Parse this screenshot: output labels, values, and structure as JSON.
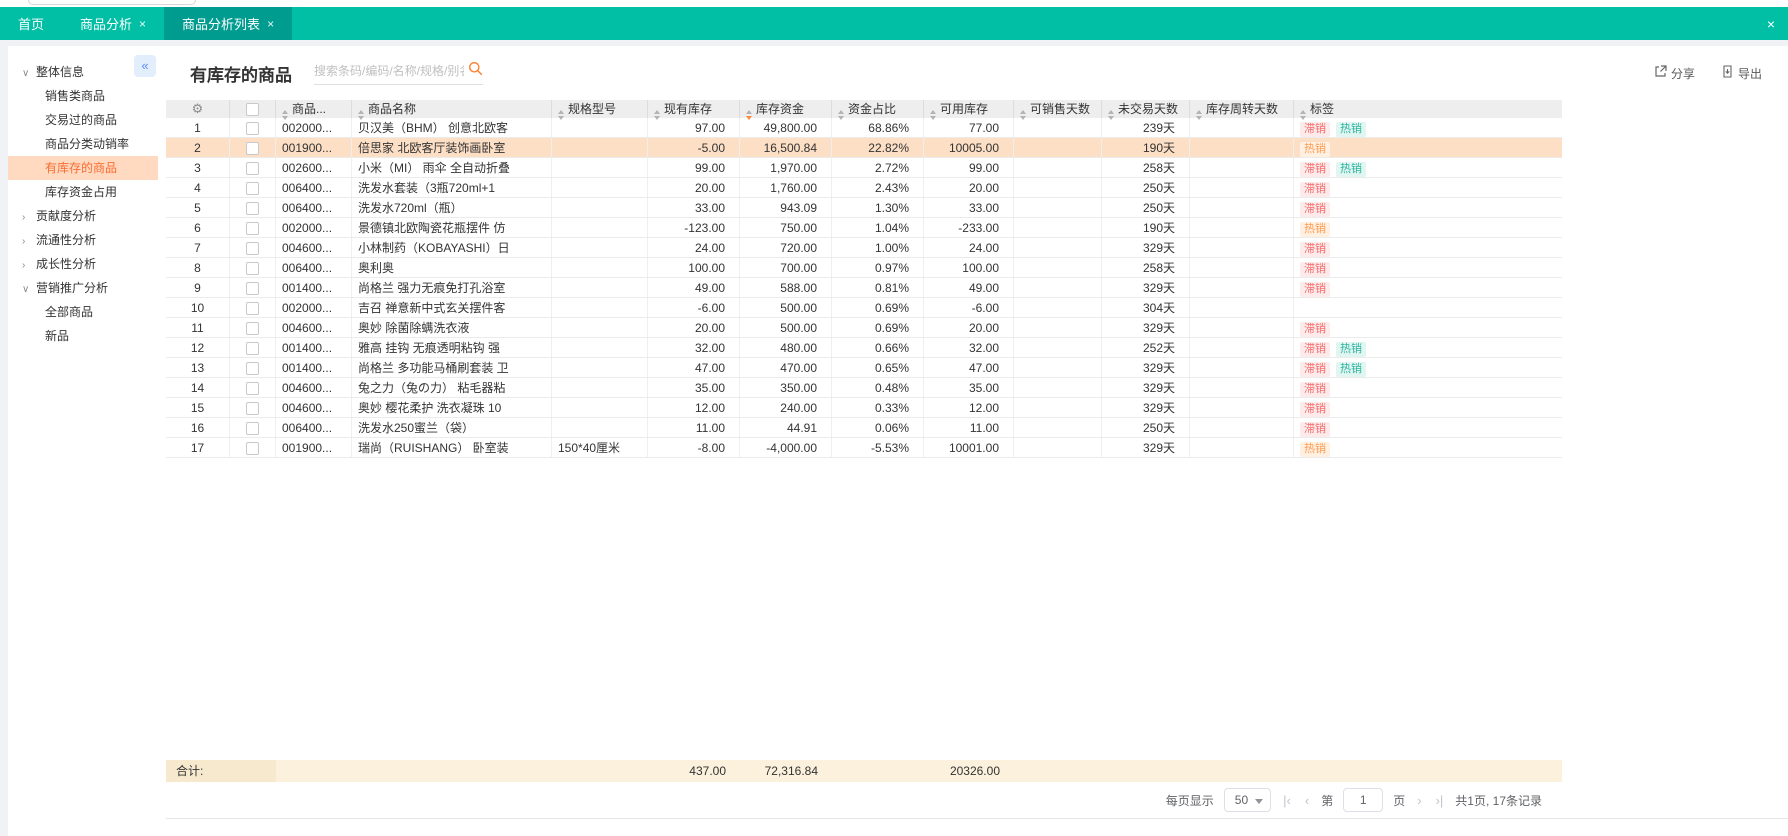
{
  "topbar": {
    "tabs": [
      {
        "label": "首页",
        "closable": false,
        "active": false
      },
      {
        "label": "商品分析",
        "closable": true,
        "active": false
      },
      {
        "label": "商品分析列表",
        "closable": true,
        "active": true
      }
    ],
    "close_icon": "×"
  },
  "sidebar": {
    "collapse_icon": "«",
    "items": [
      {
        "label": "整体信息",
        "type": "group",
        "expanded": true,
        "active": false
      },
      {
        "label": "销售类商品",
        "type": "child",
        "active": false
      },
      {
        "label": "交易过的商品",
        "type": "child",
        "active": false
      },
      {
        "label": "商品分类动销率",
        "type": "child",
        "active": false
      },
      {
        "label": "有库存的商品",
        "type": "child",
        "active": true
      },
      {
        "label": "库存资金占用",
        "type": "child",
        "active": false
      },
      {
        "label": "贡献度分析",
        "type": "group",
        "expanded": false,
        "active": false
      },
      {
        "label": "流通性分析",
        "type": "group",
        "expanded": false,
        "active": false
      },
      {
        "label": "成长性分析",
        "type": "group",
        "expanded": false,
        "active": false
      },
      {
        "label": "营销推广分析",
        "type": "group",
        "expanded": true,
        "active": false
      },
      {
        "label": "全部商品",
        "type": "child",
        "active": false
      },
      {
        "label": "新品",
        "type": "child",
        "active": false
      }
    ]
  },
  "header": {
    "title": "有库存的商品",
    "search_placeholder": "搜索条码/编码/名称/规格/别名",
    "share_label": "分享",
    "export_label": "导出"
  },
  "table": {
    "columns": [
      {
        "label": "商品...",
        "align": "left",
        "sort": null
      },
      {
        "label": "商品名称",
        "align": "left",
        "sort": null
      },
      {
        "label": "规格型号",
        "align": "left",
        "sort": null
      },
      {
        "label": "现有库存",
        "align": "right",
        "sort": null
      },
      {
        "label": "库存资金",
        "align": "right",
        "sort": "desc"
      },
      {
        "label": "资金占比",
        "align": "right",
        "sort": null
      },
      {
        "label": "可用库存",
        "align": "right",
        "sort": null
      },
      {
        "label": "可销售天数",
        "align": "right",
        "sort": null
      },
      {
        "label": "未交易天数",
        "align": "right",
        "sort": null
      },
      {
        "label": "库存周转天数",
        "align": "right",
        "sort": null
      },
      {
        "label": "标签",
        "align": "left",
        "sort": null
      }
    ],
    "rows": [
      {
        "num": "1",
        "code": "002000...",
        "name": "贝汉美（BHM） 创意北欧客",
        "spec": "",
        "stock": "97.00",
        "fund": "49,800.00",
        "ratio": "68.86%",
        "avail": "77.00",
        "sale_days": "",
        "no_trade_days": "239天",
        "turnover_days": "",
        "highlight": false,
        "tags": [
          {
            "label": "滞销",
            "type": "red"
          },
          {
            "label": "热销",
            "type": "teal"
          }
        ]
      },
      {
        "num": "2",
        "code": "001900...",
        "name": "倍思家 北欧客厅装饰画卧室",
        "spec": "",
        "stock": "-5.00",
        "fund": "16,500.84",
        "ratio": "22.82%",
        "avail": "10005.00",
        "sale_days": "",
        "no_trade_days": "190天",
        "turnover_days": "",
        "highlight": true,
        "tags": [
          {
            "label": "热销",
            "type": "orange"
          }
        ]
      },
      {
        "num": "3",
        "code": "002600...",
        "name": "小米（MI） 雨伞 全自动折叠",
        "spec": "",
        "stock": "99.00",
        "fund": "1,970.00",
        "ratio": "2.72%",
        "avail": "99.00",
        "sale_days": "",
        "no_trade_days": "258天",
        "turnover_days": "",
        "highlight": false,
        "tags": [
          {
            "label": "滞销",
            "type": "red"
          },
          {
            "label": "热销",
            "type": "teal"
          }
        ]
      },
      {
        "num": "4",
        "code": "006400...",
        "name": "洗发水套装（3瓶720ml+1",
        "spec": "",
        "stock": "20.00",
        "fund": "1,760.00",
        "ratio": "2.43%",
        "avail": "20.00",
        "sale_days": "",
        "no_trade_days": "250天",
        "turnover_days": "",
        "highlight": false,
        "tags": [
          {
            "label": "滞销",
            "type": "red"
          }
        ]
      },
      {
        "num": "5",
        "code": "006400...",
        "name": "洗发水720ml（瓶）",
        "spec": "",
        "stock": "33.00",
        "fund": "943.09",
        "ratio": "1.30%",
        "avail": "33.00",
        "sale_days": "",
        "no_trade_days": "250天",
        "turnover_days": "",
        "highlight": false,
        "tags": [
          {
            "label": "滞销",
            "type": "red"
          }
        ]
      },
      {
        "num": "6",
        "code": "002000...",
        "name": "景德镇北欧陶瓷花瓶摆件 仿",
        "spec": "",
        "stock": "-123.00",
        "fund": "750.00",
        "ratio": "1.04%",
        "avail": "-233.00",
        "sale_days": "",
        "no_trade_days": "190天",
        "turnover_days": "",
        "highlight": false,
        "tags": [
          {
            "label": "热销",
            "type": "orange"
          }
        ]
      },
      {
        "num": "7",
        "code": "004600...",
        "name": "小林制药（KOBAYASHI）日",
        "spec": "",
        "stock": "24.00",
        "fund": "720.00",
        "ratio": "1.00%",
        "avail": "24.00",
        "sale_days": "",
        "no_trade_days": "329天",
        "turnover_days": "",
        "highlight": false,
        "tags": [
          {
            "label": "滞销",
            "type": "red"
          }
        ]
      },
      {
        "num": "8",
        "code": "006400...",
        "name": "奥利奥",
        "spec": "",
        "stock": "100.00",
        "fund": "700.00",
        "ratio": "0.97%",
        "avail": "100.00",
        "sale_days": "",
        "no_trade_days": "258天",
        "turnover_days": "",
        "highlight": false,
        "tags": [
          {
            "label": "滞销",
            "type": "red"
          }
        ]
      },
      {
        "num": "9",
        "code": "001400...",
        "name": "尚格兰 强力无痕免打孔浴室",
        "spec": "",
        "stock": "49.00",
        "fund": "588.00",
        "ratio": "0.81%",
        "avail": "49.00",
        "sale_days": "",
        "no_trade_days": "329天",
        "turnover_days": "",
        "highlight": false,
        "tags": [
          {
            "label": "滞销",
            "type": "red"
          }
        ]
      },
      {
        "num": "10",
        "code": "002000...",
        "name": "吉召 禅意新中式玄关摆件客",
        "spec": "",
        "stock": "-6.00",
        "fund": "500.00",
        "ratio": "0.69%",
        "avail": "-6.00",
        "sale_days": "",
        "no_trade_days": "304天",
        "turnover_days": "",
        "highlight": false,
        "tags": []
      },
      {
        "num": "11",
        "code": "004600...",
        "name": "奥妙 除菌除螨洗衣液",
        "spec": "",
        "stock": "20.00",
        "fund": "500.00",
        "ratio": "0.69%",
        "avail": "20.00",
        "sale_days": "",
        "no_trade_days": "329天",
        "turnover_days": "",
        "highlight": false,
        "tags": [
          {
            "label": "滞销",
            "type": "red"
          }
        ]
      },
      {
        "num": "12",
        "code": "001400...",
        "name": "雅高 挂钩 无痕透明粘钩 强",
        "spec": "",
        "stock": "32.00",
        "fund": "480.00",
        "ratio": "0.66%",
        "avail": "32.00",
        "sale_days": "",
        "no_trade_days": "252天",
        "turnover_days": "",
        "highlight": false,
        "tags": [
          {
            "label": "滞销",
            "type": "red"
          },
          {
            "label": "热销",
            "type": "teal"
          }
        ]
      },
      {
        "num": "13",
        "code": "001400...",
        "name": "尚格兰 多功能马桶刷套装 卫",
        "spec": "",
        "stock": "47.00",
        "fund": "470.00",
        "ratio": "0.65%",
        "avail": "47.00",
        "sale_days": "",
        "no_trade_days": "329天",
        "turnover_days": "",
        "highlight": false,
        "tags": [
          {
            "label": "滞销",
            "type": "red"
          },
          {
            "label": "热销",
            "type": "teal"
          }
        ]
      },
      {
        "num": "14",
        "code": "004600...",
        "name": "兔之力（兔の力） 粘毛器粘",
        "spec": "",
        "stock": "35.00",
        "fund": "350.00",
        "ratio": "0.48%",
        "avail": "35.00",
        "sale_days": "",
        "no_trade_days": "329天",
        "turnover_days": "",
        "highlight": false,
        "tags": [
          {
            "label": "滞销",
            "type": "red"
          }
        ]
      },
      {
        "num": "15",
        "code": "004600...",
        "name": "奥妙 樱花柔护 洗衣凝珠 10",
        "spec": "",
        "stock": "12.00",
        "fund": "240.00",
        "ratio": "0.33%",
        "avail": "12.00",
        "sale_days": "",
        "no_trade_days": "329天",
        "turnover_days": "",
        "highlight": false,
        "tags": [
          {
            "label": "滞销",
            "type": "red"
          }
        ]
      },
      {
        "num": "16",
        "code": "006400...",
        "name": "洗发水250蜜兰（袋）",
        "spec": "",
        "stock": "11.00",
        "fund": "44.91",
        "ratio": "0.06%",
        "avail": "11.00",
        "sale_days": "",
        "no_trade_days": "250天",
        "turnover_days": "",
        "highlight": false,
        "tags": [
          {
            "label": "滞销",
            "type": "red"
          }
        ]
      },
      {
        "num": "17",
        "code": "001900...",
        "name": "瑞尚（RUISHANG） 卧室装",
        "spec": "150*40厘米",
        "stock": "-8.00",
        "fund": "-4,000.00",
        "ratio": "-5.53%",
        "avail": "10001.00",
        "sale_days": "",
        "no_trade_days": "329天",
        "turnover_days": "",
        "highlight": false,
        "tags": [
          {
            "label": "热销",
            "type": "orange"
          }
        ]
      }
    ],
    "totals": {
      "label": "合计:",
      "stock": "437.00",
      "fund": "72,316.84",
      "avail": "20326.00"
    }
  },
  "pagination": {
    "per_page_label": "每页显示",
    "per_page_value": "50",
    "first_icon": "|‹",
    "prev_icon": "‹",
    "page_prefix": "第",
    "page_value": "1",
    "page_suffix": "页",
    "next_icon": "›",
    "last_icon": "›|",
    "summary": "共1页, 17条记录"
  },
  "colors": {
    "topbar": "#00bfa5",
    "tab_active": "#009c8f",
    "sidebar_active_bg": "#ffd9c0",
    "sidebar_active_text": "#f96c32",
    "row_highlight": "#fcdfc5",
    "totals_bg": "#fbf1dc",
    "tag_red": "#f56c6c",
    "tag_teal": "#2bb3a1",
    "tag_orange": "#ff9c52",
    "sort_active": "#ff8a3c"
  }
}
